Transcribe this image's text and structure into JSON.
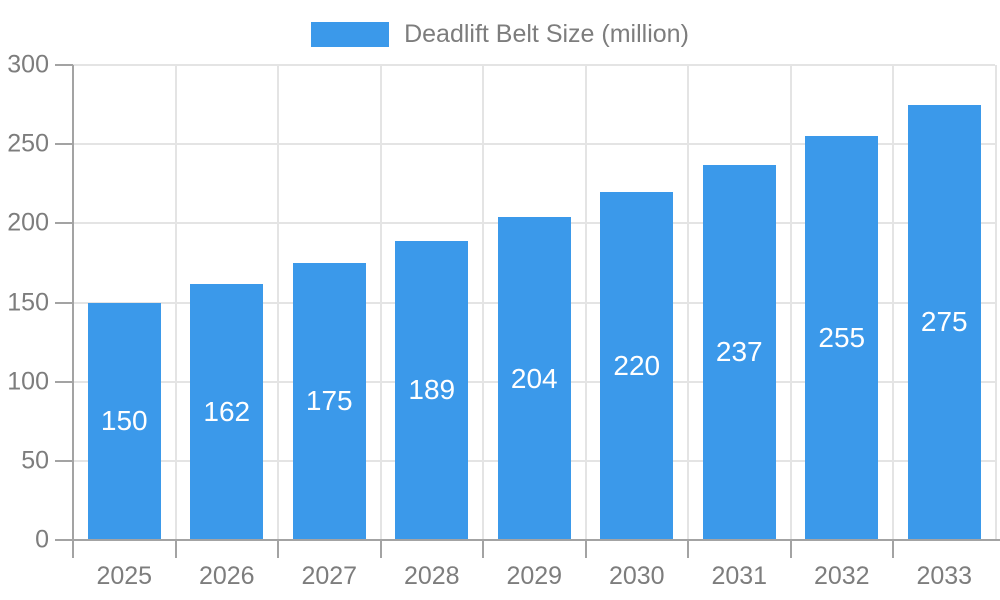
{
  "legend": {
    "label": "Deadlift Belt Size (million)"
  },
  "chart_data": {
    "type": "bar",
    "title": "Deadlift Belt Size (million)",
    "categories": [
      "2025",
      "2026",
      "2027",
      "2028",
      "2029",
      "2030",
      "2031",
      "2032",
      "2033"
    ],
    "series": [
      {
        "name": "Deadlift Belt Size (million)",
        "values": [
          150,
          162,
          175,
          189,
          204,
          220,
          237,
          255,
          275
        ]
      }
    ],
    "xlabel": "",
    "ylabel": "",
    "ylim": [
      0,
      300
    ],
    "yticks": [
      0,
      50,
      100,
      150,
      200,
      250,
      300
    ],
    "grid": true,
    "legend_position": "top",
    "value_label_position": "inside-center",
    "colors": {
      "bar": "#3b99ea",
      "axis": "#a3a3a3",
      "grid": "#e4e4e4",
      "tick_label": "#7d7d7d",
      "value_label": "#ffffff",
      "background": "#ffffff"
    }
  }
}
